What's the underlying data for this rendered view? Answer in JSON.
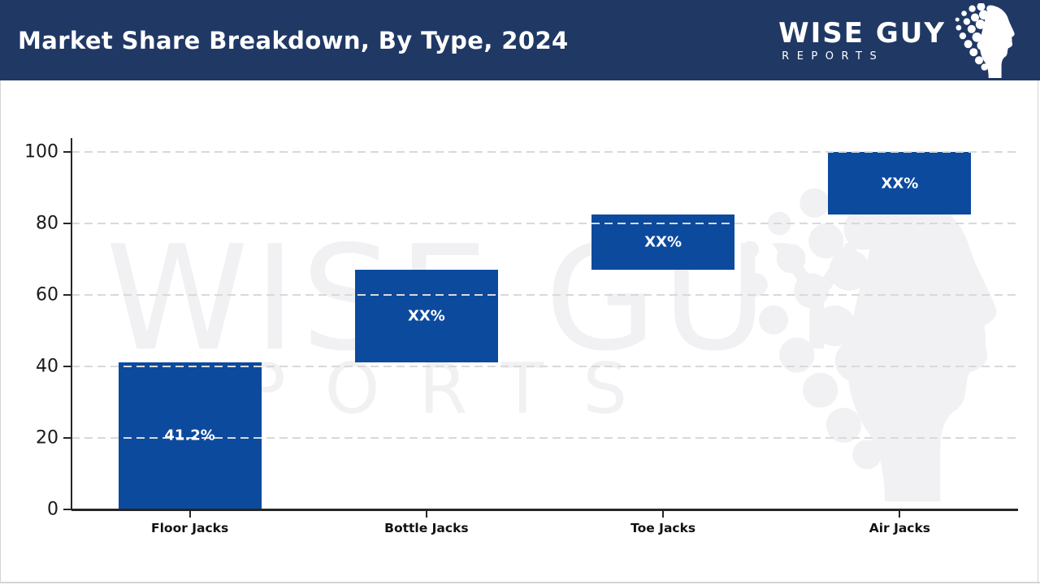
{
  "header": {
    "title": "Market Share Breakdown, By Type, 2024"
  },
  "logo": {
    "line1": "WISE GUY",
    "line2": "REPORTS"
  },
  "watermark": {
    "line1": "WISE GUY",
    "line2": "PORTS"
  },
  "colors": {
    "header_background": "#203864",
    "bar_fill": "#0c4a9e",
    "bar_label": "#ffffff",
    "grid_line": "#d9d9d9",
    "axis_line": "#262626",
    "tick_label": "#1a1a1a",
    "watermark": "#f1f1f3"
  },
  "chart_data": {
    "type": "bar",
    "subtype": "waterfall",
    "title": "Market Share Breakdown, By Type, 2024",
    "xlabel": "",
    "ylabel": "",
    "categories": [
      "Floor Jacks",
      "Bottle Jacks",
      "Toe Jacks",
      "Air Jacks"
    ],
    "segments": [
      {
        "category": "Floor Jacks",
        "start": 0,
        "end": 41.2,
        "label": "41.2%"
      },
      {
        "category": "Bottle Jacks",
        "start": 41.2,
        "end": 67,
        "label": "XX%"
      },
      {
        "category": "Toe Jacks",
        "start": 67,
        "end": 82.5,
        "label": "XX%"
      },
      {
        "category": "Air Jacks",
        "start": 82.5,
        "end": 100,
        "label": "XX%"
      }
    ],
    "ylim": [
      0,
      105
    ],
    "yticks": [
      0,
      20,
      40,
      60,
      80,
      100
    ],
    "grid": "horizontal-dashed",
    "legend": "none",
    "bar_label_notes": "first bar shows actual value, remaining bars show XX% placeholders"
  }
}
